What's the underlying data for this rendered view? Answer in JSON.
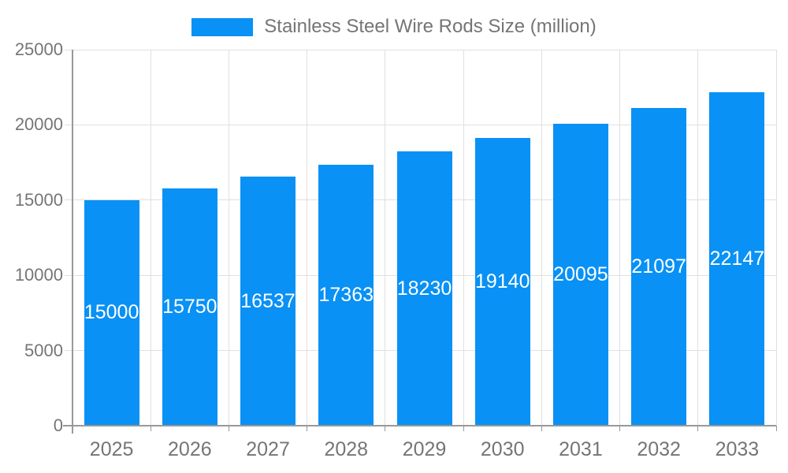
{
  "legend": {
    "label": "Stainless Steel Wire Rods Size (million)"
  },
  "chart_data": {
    "type": "bar",
    "title": "Stainless Steel Wire Rods Size (million)",
    "categories": [
      "2025",
      "2026",
      "2027",
      "2028",
      "2029",
      "2030",
      "2031",
      "2032",
      "2033"
    ],
    "values": [
      15000,
      15750,
      16537,
      17363,
      18230,
      19140,
      20095,
      21097,
      22147
    ],
    "series": [
      {
        "name": "Stainless Steel Wire Rods Size (million)",
        "values": [
          15000,
          15750,
          16537,
          17363,
          18230,
          19140,
          20095,
          21097,
          22147
        ]
      }
    ],
    "xlabel": "",
    "ylabel": "",
    "ylim": [
      0,
      25000
    ],
    "yticks": [
      0,
      5000,
      10000,
      15000,
      20000,
      25000
    ],
    "grid": true,
    "legend_position": "top",
    "value_labels": "inside-center",
    "colors": {
      "bar": "#0991f5",
      "axis": "#999999",
      "grid": "#e0e0e0",
      "tick_label": "#757575",
      "legend_label": "#757575",
      "value_label": "#ffffff",
      "background": "#ffffff"
    }
  }
}
